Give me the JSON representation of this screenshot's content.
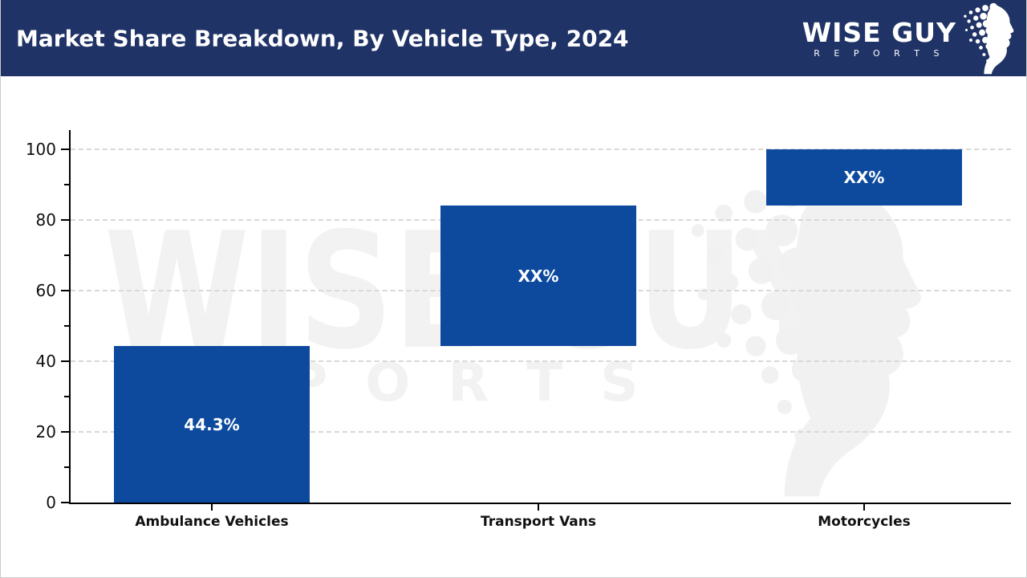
{
  "header": {
    "title": "Market Share Breakdown, By Vehicle Type, 2024",
    "bg_color": "#203366",
    "logo": {
      "line1": "WISE GUY",
      "line2": "R E P O R T S"
    }
  },
  "watermark": {
    "line1": "WISE GUY",
    "line2": "R E P O R T S",
    "color": "#f2f2f2"
  },
  "chart_data": {
    "type": "bar",
    "subtype": "stacked-waterfall",
    "title": "Market Share Breakdown, By Vehicle Type, 2024",
    "categories": [
      "Ambulance Vehicles",
      "Transport Vans",
      "Motorcycles"
    ],
    "segments": [
      {
        "category": "Ambulance Vehicles",
        "start": 0,
        "end": 44.3,
        "label": "44.3%"
      },
      {
        "category": "Transport Vans",
        "start": 44.3,
        "end": 84,
        "label": "XX%"
      },
      {
        "category": "Motorcycles",
        "start": 84,
        "end": 100,
        "label": "XX%"
      }
    ],
    "xlabel": "",
    "ylabel": "",
    "ylim": [
      0,
      100
    ],
    "yticks": [
      0,
      20,
      40,
      60,
      80,
      100
    ],
    "ytick_minor_step": 10,
    "grid": "horizontal-dashed",
    "legend": "none",
    "bar_color": "#0d4a9e"
  }
}
